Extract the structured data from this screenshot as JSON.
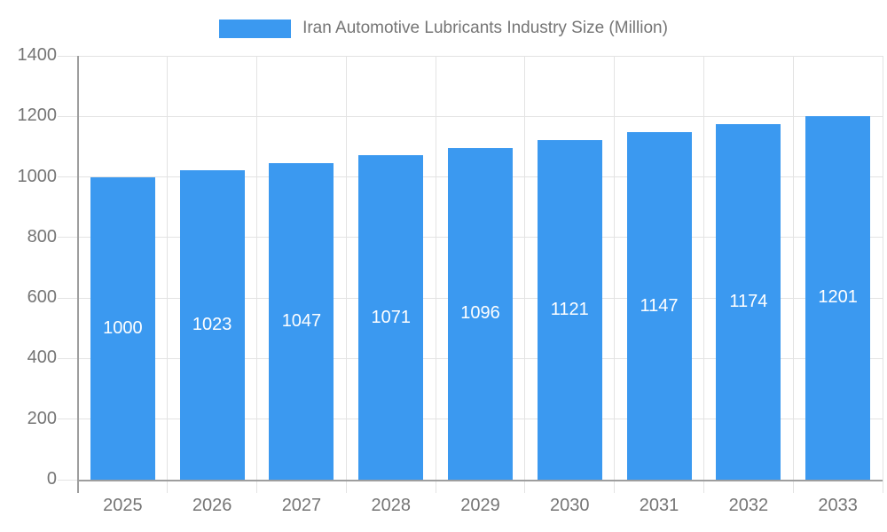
{
  "legend": {
    "label": "Iran Automotive Lubricants Industry Size (Million)"
  },
  "chart_data": {
    "type": "bar",
    "title": "Iran Automotive Lubricants Industry Size (Million)",
    "series": [
      {
        "name": "Iran Automotive Lubricants Industry Size (Million)",
        "values": [
          1000,
          1023,
          1047,
          1071,
          1096,
          1121,
          1147,
          1174,
          1201
        ]
      }
    ],
    "categories": [
      "2025",
      "2026",
      "2027",
      "2028",
      "2029",
      "2030",
      "2031",
      "2032",
      "2033"
    ],
    "xlabel": "",
    "ylabel": "",
    "ylim": [
      0,
      1400
    ],
    "yticks": [
      0,
      200,
      400,
      600,
      800,
      1000,
      1200,
      1400
    ],
    "grid": true,
    "legend_position": "top",
    "value_labels": "inside-middle"
  },
  "colors": {
    "bar": "#3b99f0",
    "gridline": "#e3e3e3",
    "axis_line": "#9e9e9e",
    "text": "#757575",
    "value_label": "#ffffff",
    "background": "#ffffff"
  }
}
